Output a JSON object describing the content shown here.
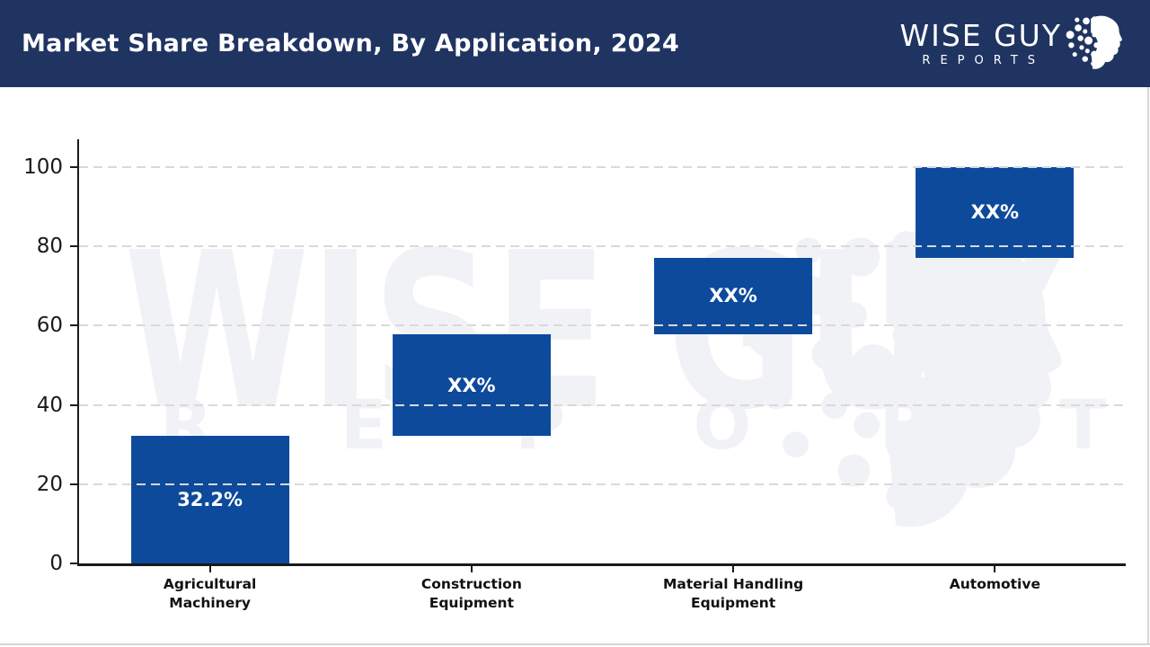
{
  "header": {
    "title": "Market Share Breakdown, By Application, 2024",
    "bg_color": "#203462",
    "logo": {
      "line1": "WISE GUY",
      "line2": "REPORTS"
    }
  },
  "watermark": {
    "line1": "WISE GUY",
    "line2": "R E P O R T S"
  },
  "chart_data": {
    "type": "bar",
    "subtype": "waterfall",
    "title": "Market Share Breakdown, By Application, 2024",
    "categories": [
      "Agricultural Machinery",
      "Construction Equipment",
      "Material Handling Equipment",
      "Automotive"
    ],
    "segments": [
      {
        "category": "Agricultural Machinery",
        "start": 0,
        "end": 32.2,
        "label": "32.2%"
      },
      {
        "category": "Construction Equipment",
        "start": 32.2,
        "end": 57.8,
        "label": "XX%"
      },
      {
        "category": "Material Handling Equipment",
        "start": 57.8,
        "end": 77.1,
        "label": "XX%"
      },
      {
        "category": "Automotive",
        "start": 77.1,
        "end": 100,
        "label": "XX%"
      }
    ],
    "xlabel": "",
    "ylabel": "",
    "yticks": [
      0,
      20,
      40,
      60,
      80,
      100
    ],
    "ylim": [
      0,
      107
    ],
    "grid": "horizontal-dashed",
    "legend": "none",
    "colors": {
      "bar": "#0d4a9c",
      "bar_label": "#ffffff",
      "grid": "#d9d9d9",
      "axis": "#1a1a1a",
      "tick_label": "#1a1a1a",
      "header_bg": "#203462",
      "watermark": "#f1f2f5"
    }
  }
}
